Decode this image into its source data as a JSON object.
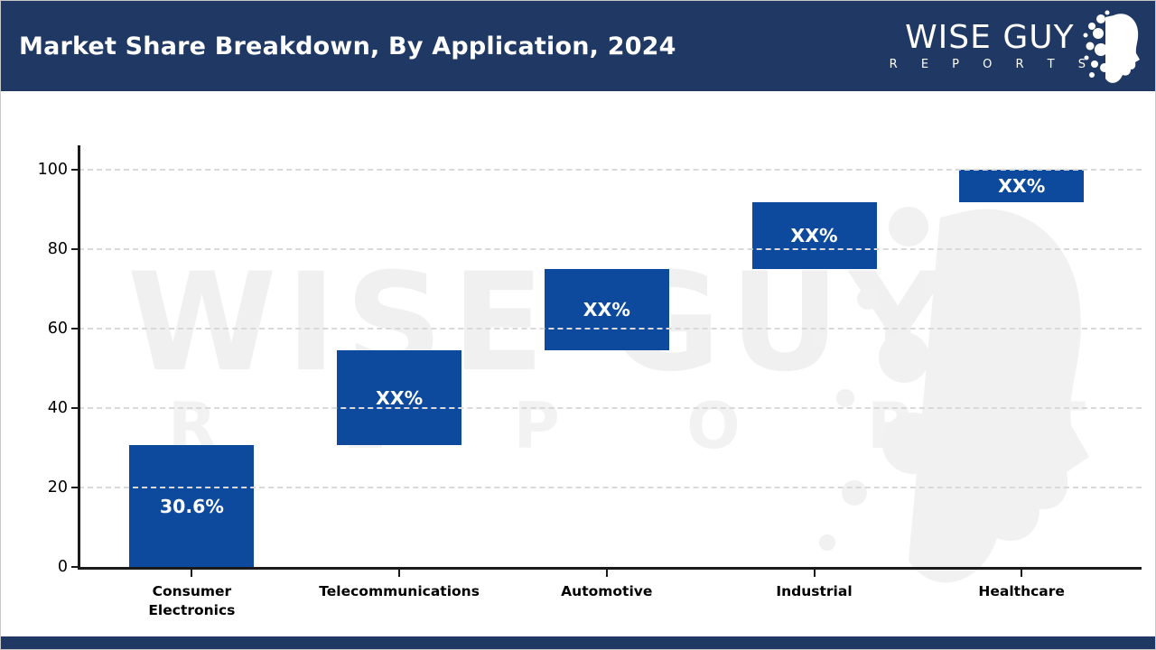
{
  "header": {
    "title": "Market Share Breakdown, By Application, 2024",
    "bg_color": "#1f3864",
    "logo": {
      "line1": "WISE GUY",
      "line2": "R E P O R T S"
    }
  },
  "watermark": {
    "line1": "WISE GUY",
    "line2": "R E P O R T S"
  },
  "footer": {
    "bg_color": "#1f3864"
  },
  "chart_data": {
    "type": "bar",
    "subtype": "waterfall-cumulative",
    "title": "Market Share Breakdown, By Application, 2024",
    "categories": [
      "Consumer\nElectronics",
      "Telecommunications",
      "Automotive",
      "Industrial",
      "Healthcare"
    ],
    "segments": [
      {
        "category": "Consumer\nElectronics",
        "start": 0,
        "end": 30.6,
        "label": "30.6%"
      },
      {
        "category": "Telecommunications",
        "start": 30.6,
        "end": 54.6,
        "label": "XX%"
      },
      {
        "category": "Automotive",
        "start": 54.6,
        "end": 75.1,
        "label": "XX%"
      },
      {
        "category": "Industrial",
        "start": 75.1,
        "end": 91.8,
        "label": "XX%"
      },
      {
        "category": "Healthcare",
        "start": 91.8,
        "end": 100,
        "label": "XX%"
      }
    ],
    "y_ticks": [
      0,
      20,
      40,
      60,
      80,
      100
    ],
    "ylim": [
      0,
      100
    ],
    "xlabel": "",
    "ylabel": "",
    "legend": "none",
    "grid": "horizontal-dashed",
    "bar_color": "#0d4a9e",
    "grid_color": "#d9d9d9",
    "axis_color": "#1a1a1a"
  }
}
